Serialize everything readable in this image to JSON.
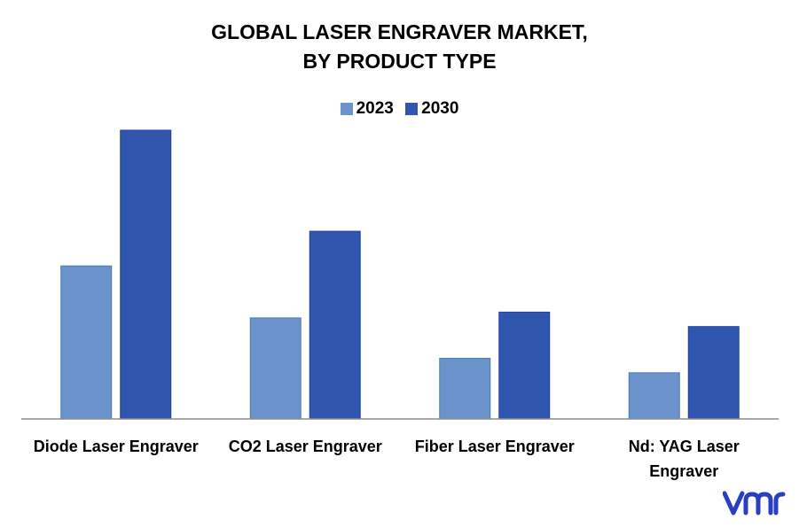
{
  "title_line1": "GLOBAL LASER ENGRAVER MARKET,",
  "title_line2": "BY PRODUCT TYPE",
  "legend": [
    {
      "label": "2023",
      "color": "#6a93cb"
    },
    {
      "label": "2030",
      "color": "#2f55ae"
    }
  ],
  "logo_text": "vmr",
  "chart_data": {
    "type": "bar",
    "title": "GLOBAL LASER ENGRAVER MARKET, BY PRODUCT TYPE",
    "xlabel": "",
    "ylabel": "",
    "ylim": [
      0,
      100
    ],
    "grid": false,
    "legend_position": "top-center",
    "categories": [
      "Diode Laser Engraver",
      "CO2 Laser Engraver",
      "Fiber Laser Engraver",
      "Nd: YAG Laser Engraver"
    ],
    "series": [
      {
        "name": "2023",
        "values": [
          53,
          35,
          21,
          16
        ],
        "color": "#6a93cb"
      },
      {
        "name": "2030",
        "values": [
          100,
          65,
          37,
          32
        ],
        "color": "#2f55ae"
      }
    ]
  }
}
